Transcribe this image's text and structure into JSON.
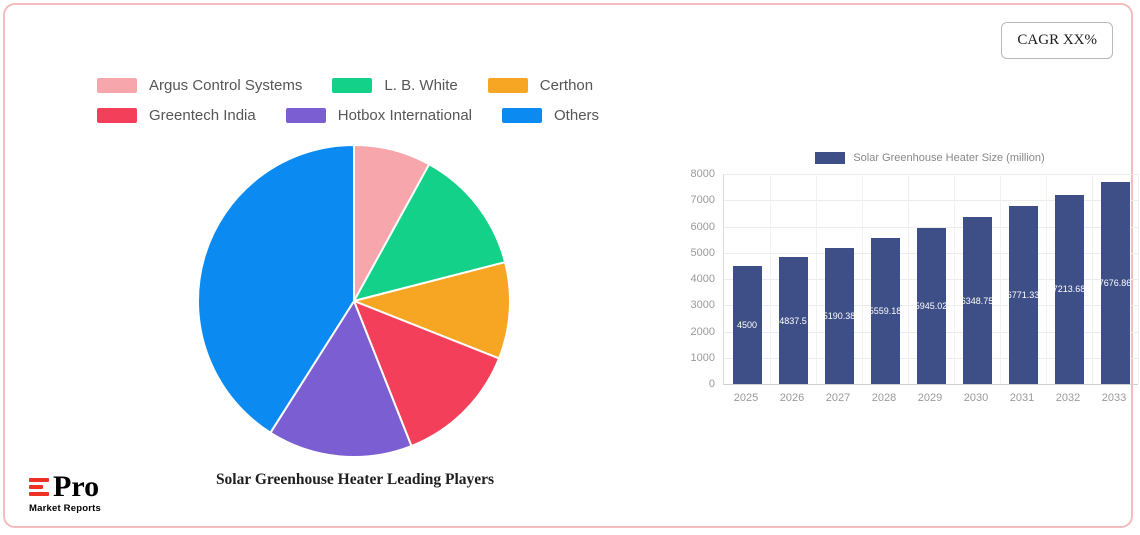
{
  "cagr": {
    "label": "CAGR XX%"
  },
  "branding": {
    "name": "Pro",
    "subtitle": "Market Reports"
  },
  "chart_data": [
    {
      "type": "pie",
      "title": "Solar Greenhouse Heater Leading Players",
      "labels": [
        "Argus Control Systems",
        "L. B. White",
        "Certhon",
        "Greentech India",
        "Hotbox International",
        "Others"
      ],
      "values": [
        8,
        13,
        10,
        13,
        15,
        41
      ],
      "colors": [
        "#f7a6ab",
        "#14d189",
        "#f6a623",
        "#f43f5b",
        "#7b5ed1",
        "#0b8bf2"
      ],
      "legend_position": "top-left",
      "units": "percent (estimated from slice angles)"
    },
    {
      "type": "bar",
      "legend": "Solar Greenhouse Heater Size (million)",
      "categories": [
        "2025",
        "2026",
        "2027",
        "2028",
        "2029",
        "2030",
        "2031",
        "2032",
        "2033"
      ],
      "values": [
        4500,
        4837.5,
        5190.38,
        5559.18,
        5945.02,
        6348.75,
        6771.33,
        7213.68,
        7676.86
      ],
      "value_labels": [
        "4500",
        "4837.5",
        "5190.38",
        "5559.18",
        "5945.02",
        "6348.75",
        "6771.33",
        "7213.68",
        "7676.86"
      ],
      "bar_color": "#3e4e87",
      "ylim": [
        0,
        8000
      ],
      "yticks": [
        0,
        1000,
        2000,
        3000,
        4000,
        5000,
        6000,
        7000,
        8000
      ],
      "grid": true,
      "legend_position": "top"
    }
  ]
}
